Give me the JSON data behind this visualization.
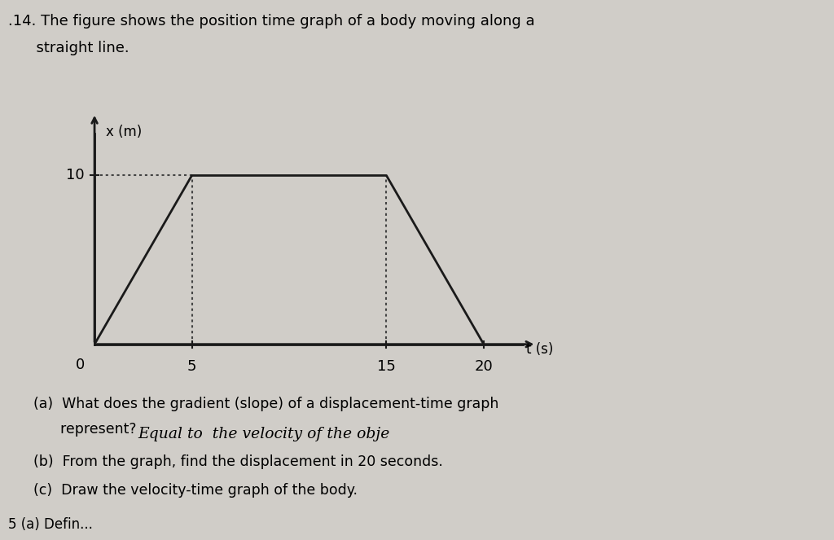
{
  "title_line1": ".14. The figure shows the position time graph of a body moving along a",
  "title_line2": "      straight line.",
  "graph": {
    "t_values": [
      0,
      5,
      15,
      20
    ],
    "x_values": [
      0,
      10,
      10,
      0
    ],
    "dashed_h_x_start": 0,
    "dashed_h_x_end": 5,
    "dashed_x": 10,
    "dashed_t1": 5,
    "dashed_t2": 15,
    "xlim": [
      -1,
      23
    ],
    "ylim": [
      -2,
      14
    ],
    "xlabel": "t (s)",
    "ylabel": "x (m)",
    "xticks": [
      5,
      15,
      20
    ],
    "xtick_labels": [
      "5",
      "15",
      "20"
    ],
    "ytick_val": 10,
    "ytick_label": "10",
    "origin_label": "0",
    "line_color": "#1a1a1a",
    "dot_color": "#444444",
    "bg_color": "#d0cdc8"
  },
  "q1a_print": "(a)  What does the gradient (slope) of a displacement-time graph",
  "q1a_print2": "      represent? ",
  "q1a_handwrite": "Equal to  the velocity of theobje",
  "q1b": "(b)  From the graph, find the displacement in 20 seconds.",
  "q1c": "(c)  Draw the velocity-time graph of the body.",
  "footer": "5 (a) Defin..."
}
